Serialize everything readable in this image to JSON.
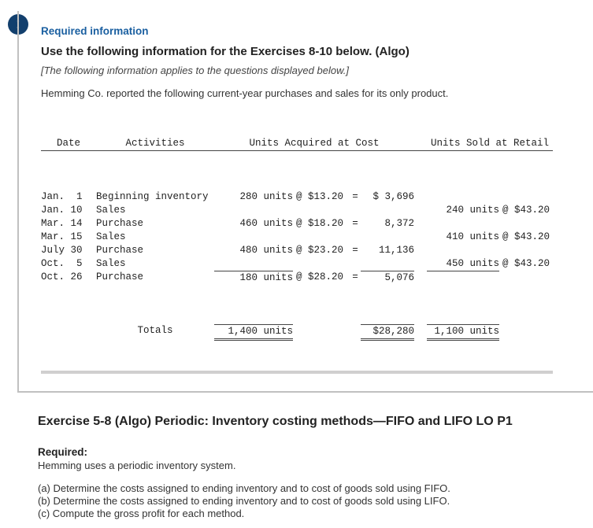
{
  "badge": "!",
  "card": {
    "required_info": "Required information",
    "use_info": "Use the following information for the Exercises 8-10 below. (Algo)",
    "italic_note": "[The following information applies to the questions displayed below.]",
    "intro": "Hemming Co. reported the following current-year purchases and sales for its only product."
  },
  "table": {
    "hdr_date": "Date",
    "hdr_activities": "Activities",
    "hdr_cost": "Units Acquired at Cost",
    "hdr_retail": "Units Sold at Retail",
    "rows": [
      {
        "date": "Jan.  1",
        "act": "Beginning inventory",
        "units": "280 units",
        "at": "@ $13.20",
        "eq": "=",
        "cost": "$ 3,696",
        "su": "",
        "sat": ""
      },
      {
        "date": "Jan. 10",
        "act": "Sales",
        "units": "",
        "at": "",
        "eq": "",
        "cost": "",
        "su": "240 units",
        "sat": "@ $43.20"
      },
      {
        "date": "Mar. 14",
        "act": "Purchase",
        "units": "460 units",
        "at": "@ $18.20",
        "eq": "=",
        "cost": "8,372",
        "su": "",
        "sat": ""
      },
      {
        "date": "Mar. 15",
        "act": "Sales",
        "units": "",
        "at": "",
        "eq": "",
        "cost": "",
        "su": "410 units",
        "sat": "@ $43.20"
      },
      {
        "date": "July 30",
        "act": "Purchase",
        "units": "480 units",
        "at": "@ $23.20",
        "eq": "=",
        "cost": "11,136",
        "su": "",
        "sat": ""
      },
      {
        "date": "Oct.  5",
        "act": "Sales",
        "units": "",
        "at": "",
        "eq": "",
        "cost": "",
        "su": "450 units",
        "sat": "@ $43.20"
      },
      {
        "date": "Oct. 26",
        "act": "Purchase",
        "units": "180 units",
        "at": "@ $28.20",
        "eq": "=",
        "cost": "5,076",
        "su": "",
        "sat": ""
      }
    ],
    "totals": {
      "date": "",
      "act": "Totals",
      "units": "1,400 units",
      "at": "",
      "eq": "",
      "cost": "$28,280",
      "su": "1,100 units",
      "sat": ""
    }
  },
  "exercise": {
    "title": "Exercise 5-8 (Algo) Periodic: Inventory costing methods—FIFO and LIFO LO P1",
    "required_label": "Required:",
    "required_intro": "Hemming uses a periodic inventory system.",
    "items": [
      "(a) Determine the costs assigned to ending inventory and to cost of goods sold using FIFO.",
      "(b) Determine the costs assigned to ending inventory and to cost of goods sold using LIFO.",
      "(c) Compute the gross profit for each method."
    ]
  }
}
